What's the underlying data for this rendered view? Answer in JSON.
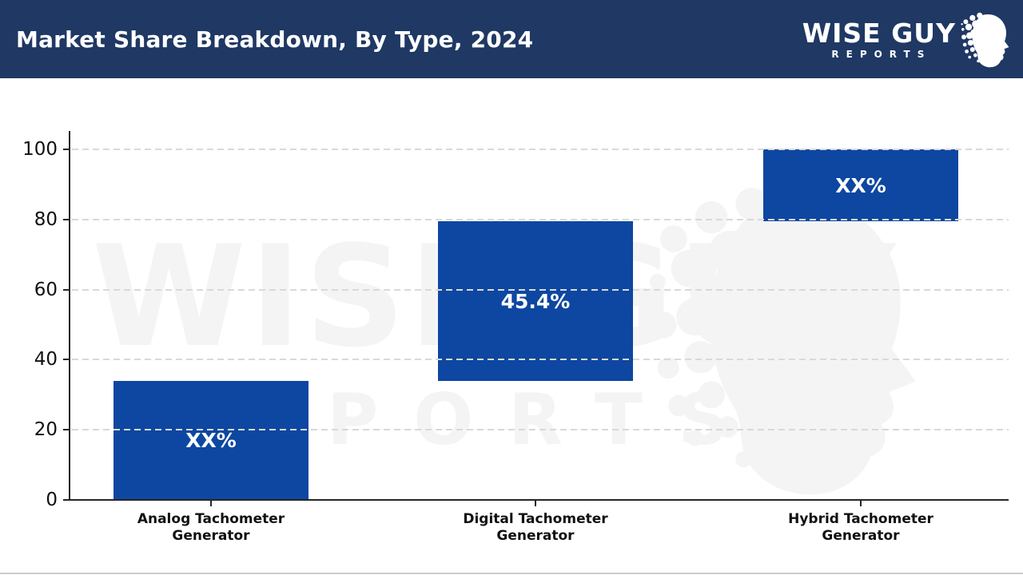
{
  "header": {
    "title": "Market Share Breakdown, By Type, 2024",
    "logo": {
      "line1": "WISE GUY",
      "line2": "REPORTS"
    }
  },
  "watermark": {
    "line1": "WISE GUY",
    "line2": "REPORTS"
  },
  "colors": {
    "header_bg": "#1f3864",
    "bar": "#0d47a1",
    "grid": "#d9d9d9",
    "axis": "#262626",
    "watermark": "#f4f4f4",
    "bar_label": "#ffffff"
  },
  "chart_data": {
    "type": "bar",
    "subtype": "floating-waterfall",
    "title": "Market Share Breakdown, By Type, 2024",
    "categories": [
      "Analog Tachometer Generator",
      "Digital Tachometer Generator",
      "Hybrid Tachometer Generator"
    ],
    "series": [
      {
        "name": "Market Share (%)",
        "segments": [
          {
            "category": "Analog Tachometer Generator",
            "start": 0,
            "end": 34,
            "label": "XX%"
          },
          {
            "category": "Digital Tachometer Generator",
            "start": 34,
            "end": 79.4,
            "label": "45.4%"
          },
          {
            "category": "Hybrid Tachometer Generator",
            "start": 79.4,
            "end": 100,
            "label": "XX%"
          }
        ]
      }
    ],
    "yticks": [
      0,
      20,
      40,
      60,
      80,
      100
    ],
    "ylim": [
      0,
      100
    ],
    "xlabel": "",
    "ylabel": "",
    "grid": "horizontal-dashed",
    "legend": "none",
    "values_masked_as": "XX%"
  }
}
